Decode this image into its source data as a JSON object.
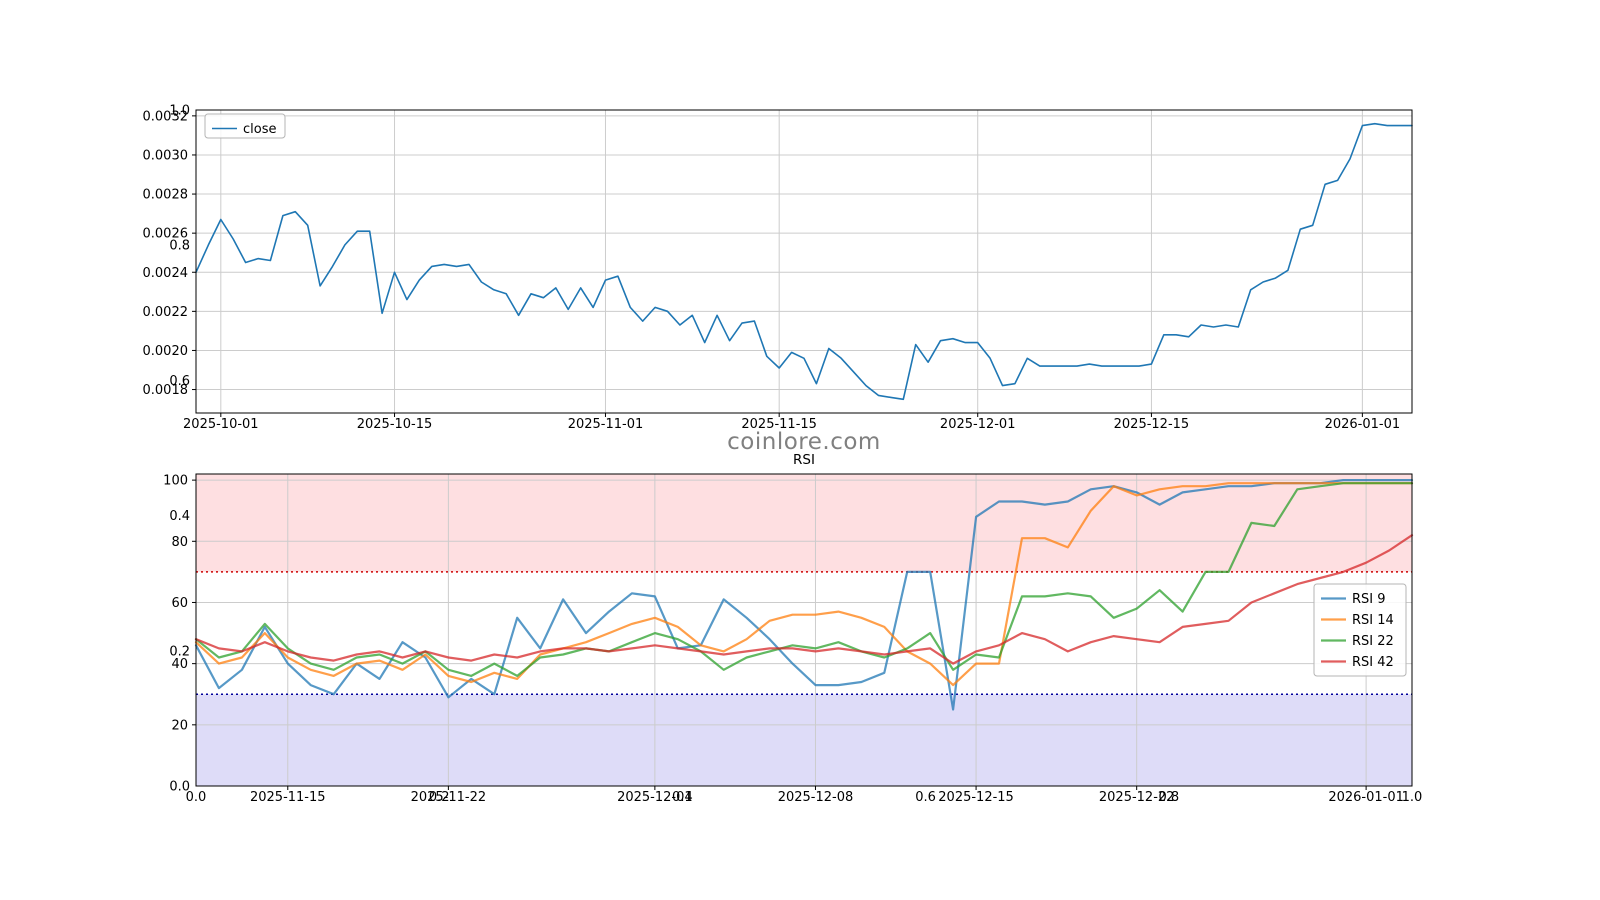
{
  "watermark": "coinlore.com",
  "overlay_axis": {
    "left_labels": [
      "1.0",
      "0.8",
      "0.6",
      "0.4",
      "0.2",
      "0.0"
    ],
    "bottom_labels": [
      "0.0",
      "0.2",
      "0.4",
      "0.6",
      "0.8",
      "1.0"
    ]
  },
  "chart_data": [
    {
      "type": "line",
      "title": "",
      "legend": {
        "position": "upper-left",
        "entries": [
          "close"
        ]
      },
      "x_tick_labels": [
        "2025-10-01",
        "2025-10-15",
        "2025-11-01",
        "2025-11-15",
        "2025-12-01",
        "2025-12-15",
        "2026-01-01"
      ],
      "x_tick_indices": [
        2,
        16,
        33,
        47,
        63,
        77,
        94
      ],
      "y_ticks": [
        0.0018,
        0.002,
        0.0022,
        0.0024,
        0.0026,
        0.0028,
        0.003,
        0.0032
      ],
      "y_tick_labels": [
        "0.0018",
        "0.0020",
        "0.0022",
        "0.0024",
        "0.0026",
        "0.0028",
        "0.0030",
        "0.0032"
      ],
      "ylim": [
        0.00168,
        0.00323
      ],
      "grid": true,
      "series": [
        {
          "name": "close",
          "color": "#1f77b4",
          "width": 1.6,
          "opacity": 1,
          "values": [
            0.0024,
            0.00254,
            0.00267,
            0.00257,
            0.00245,
            0.00247,
            0.00246,
            0.00269,
            0.00271,
            0.00264,
            0.00233,
            0.00243,
            0.00254,
            0.00261,
            0.00261,
            0.00219,
            0.0024,
            0.00226,
            0.00236,
            0.00243,
            0.00244,
            0.00243,
            0.00244,
            0.00235,
            0.00231,
            0.00229,
            0.00218,
            0.00229,
            0.00227,
            0.00232,
            0.00221,
            0.00232,
            0.00222,
            0.00236,
            0.00238,
            0.00222,
            0.00215,
            0.00222,
            0.0022,
            0.00213,
            0.00218,
            0.00204,
            0.00218,
            0.00205,
            0.00214,
            0.00215,
            0.00197,
            0.00191,
            0.00199,
            0.00196,
            0.00183,
            0.00201,
            0.00196,
            0.00189,
            0.00182,
            0.00177,
            0.00176,
            0.00175,
            0.00203,
            0.00194,
            0.00205,
            0.00206,
            0.00204,
            0.00204,
            0.00196,
            0.00182,
            0.00183,
            0.00196,
            0.00192,
            0.00192,
            0.00192,
            0.00192,
            0.00193,
            0.00192,
            0.00192,
            0.00192,
            0.00192,
            0.00193,
            0.00208,
            0.00208,
            0.00207,
            0.00213,
            0.00212,
            0.00213,
            0.00212,
            0.00231,
            0.00235,
            0.00237,
            0.00241,
            0.00262,
            0.00264,
            0.00285,
            0.00287,
            0.00298,
            0.00315,
            0.00316,
            0.00315,
            0.00315,
            0.00315
          ]
        }
      ]
    },
    {
      "type": "line",
      "title": "RSI",
      "legend": {
        "position": "center-right",
        "entries": [
          "RSI 9",
          "RSI 14",
          "RSI 22",
          "RSI 42"
        ]
      },
      "x_tick_labels": [
        "2025-11-15",
        "2025-11-22",
        "2025-12-01",
        "2025-12-08",
        "2025-12-15",
        "2025-12-22",
        "2026-01-01"
      ],
      "x_tick_indices": [
        4,
        11,
        20,
        27,
        34,
        41,
        51
      ],
      "y_ticks": [
        20,
        40,
        60,
        80,
        100
      ],
      "y_tick_labels": [
        "20",
        "40",
        "60",
        "80",
        "100"
      ],
      "ylim": [
        0,
        102
      ],
      "grid": true,
      "bands": [
        {
          "from": 70,
          "to": 102,
          "fill": "rgba(250,80,90,0.18)",
          "meaning": "overbought"
        },
        {
          "from": 0,
          "to": 30,
          "fill": "rgba(80,70,220,0.19)",
          "meaning": "oversold"
        }
      ],
      "hlines": [
        {
          "y": 70,
          "color": "#cc0000",
          "style": "dotted"
        },
        {
          "y": 30,
          "color": "#000099",
          "style": "dotted"
        }
      ],
      "series": [
        {
          "name": "RSI 9",
          "color": "#1f77b4",
          "width": 2.2,
          "opacity": 0.75,
          "values": [
            46,
            32,
            38,
            52,
            40,
            33,
            30,
            40,
            35,
            47,
            42,
            29,
            35,
            30,
            55,
            45,
            61,
            50,
            57,
            63,
            62,
            45,
            46,
            61,
            55,
            48,
            40,
            33,
            33,
            34,
            37,
            70,
            70,
            25,
            88,
            93,
            93,
            92,
            93,
            97,
            98,
            96,
            92,
            96,
            97,
            98,
            98,
            99,
            99,
            99,
            100,
            100,
            100,
            100
          ]
        },
        {
          "name": "RSI 14",
          "color": "#ff7f0e",
          "width": 2.2,
          "opacity": 0.75,
          "values": [
            47,
            40,
            42,
            50,
            42,
            38,
            36,
            40,
            41,
            38,
            43,
            36,
            34,
            37,
            35,
            43,
            45,
            47,
            50,
            53,
            55,
            52,
            46,
            44,
            48,
            54,
            56,
            56,
            57,
            55,
            52,
            44,
            40,
            33,
            40,
            40,
            81,
            81,
            78,
            90,
            98,
            95,
            97,
            98,
            98,
            99,
            99,
            99,
            99,
            99,
            99,
            99,
            99,
            99
          ]
        },
        {
          "name": "RSI 22",
          "color": "#2ca02c",
          "width": 2.2,
          "opacity": 0.75,
          "values": [
            48,
            42,
            44,
            53,
            45,
            40,
            38,
            42,
            43,
            40,
            44,
            38,
            36,
            40,
            36,
            42,
            43,
            45,
            44,
            47,
            50,
            48,
            44,
            38,
            42,
            44,
            46,
            45,
            47,
            44,
            42,
            45,
            50,
            38,
            43,
            42,
            62,
            62,
            63,
            62,
            55,
            58,
            64,
            57,
            70,
            70,
            86,
            85,
            97,
            98,
            99,
            99,
            99,
            99
          ]
        },
        {
          "name": "RSI 42",
          "color": "#d62728",
          "width": 2.2,
          "opacity": 0.75,
          "values": [
            48,
            45,
            44,
            47,
            44,
            42,
            41,
            43,
            44,
            42,
            44,
            42,
            41,
            43,
            42,
            44,
            45,
            45,
            44,
            45,
            46,
            45,
            44,
            43,
            44,
            45,
            45,
            44,
            45,
            44,
            43,
            44,
            45,
            40,
            44,
            46,
            50,
            48,
            44,
            47,
            49,
            48,
            47,
            52,
            53,
            54,
            60,
            63,
            66,
            68,
            70,
            73,
            77,
            82
          ]
        }
      ]
    }
  ]
}
